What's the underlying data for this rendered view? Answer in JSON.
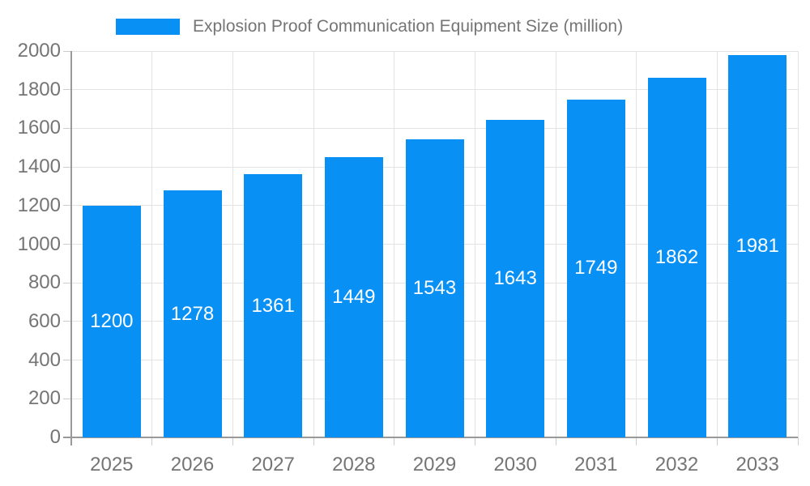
{
  "chart_data": {
    "type": "bar",
    "title": "Explosion Proof Communication Equipment Size (million)",
    "categories": [
      "2025",
      "2026",
      "2027",
      "2028",
      "2029",
      "2030",
      "2031",
      "2032",
      "2033"
    ],
    "values": [
      1200,
      1278,
      1361,
      1449,
      1543,
      1643,
      1749,
      1862,
      1981
    ],
    "series": [
      {
        "name": "Explosion Proof Communication Equipment Size (million)",
        "values": [
          1200,
          1278,
          1361,
          1449,
          1543,
          1643,
          1749,
          1862,
          1981
        ]
      }
    ],
    "xlabel": "",
    "ylabel": "",
    "ylim": [
      0,
      2000
    ],
    "ytick_step": 200,
    "ytick_labels": [
      "0",
      "200",
      "400",
      "600",
      "800",
      "1000",
      "1200",
      "1400",
      "1600",
      "1800",
      "2000"
    ],
    "grid": true,
    "legend_position": "top",
    "colors": {
      "bar": "#0890f5",
      "bar_value_text": "#ffffff",
      "grid": "#e3e3e3",
      "axis": "#999999",
      "tick": "#cccccc",
      "tick_text": "#757575",
      "title_text": "#757575",
      "background": "#ffffff"
    }
  }
}
